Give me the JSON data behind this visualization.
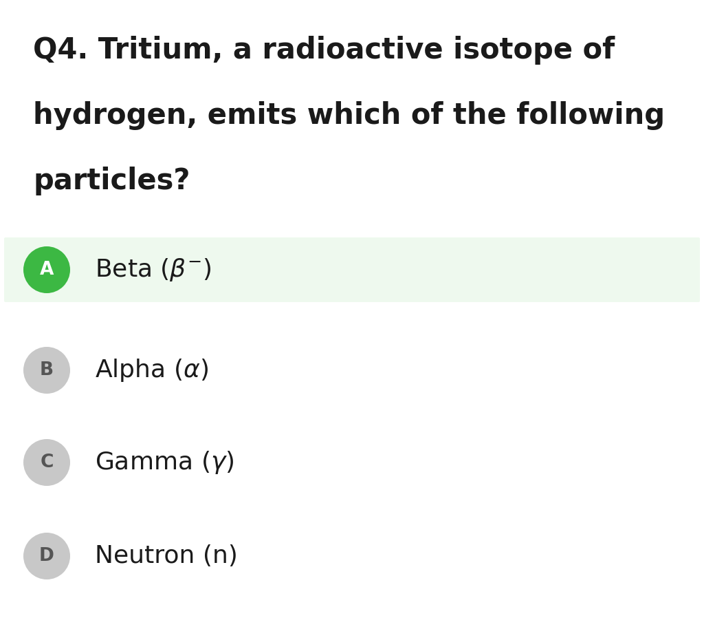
{
  "background_color": "#ffffff",
  "question_lines": [
    "Q4. Tritium, a radioactive isotope of",
    "hydrogen, emits which of the following",
    "particles?"
  ],
  "options": [
    {
      "letter": "A",
      "label": "A_beta",
      "circle_color": "#3cb843",
      "letter_color": "#ffffff",
      "highlight": true,
      "highlight_color": "#eef9ee"
    },
    {
      "letter": "B",
      "label": "B_alpha",
      "circle_color": "#c8c8c8",
      "letter_color": "#555555",
      "highlight": false,
      "highlight_color": null
    },
    {
      "letter": "C",
      "label": "C_gamma",
      "circle_color": "#c8c8c8",
      "letter_color": "#555555",
      "highlight": false,
      "highlight_color": null
    },
    {
      "letter": "D",
      "label": "D_neutron",
      "circle_color": "#c8c8c8",
      "letter_color": "#555555",
      "highlight": false,
      "highlight_color": null
    }
  ],
  "question_fontsize": 30,
  "option_fontsize": 26,
  "letter_fontsize": 19,
  "text_color": "#1a1a1a",
  "fig_width": 10.24,
  "fig_height": 8.98
}
